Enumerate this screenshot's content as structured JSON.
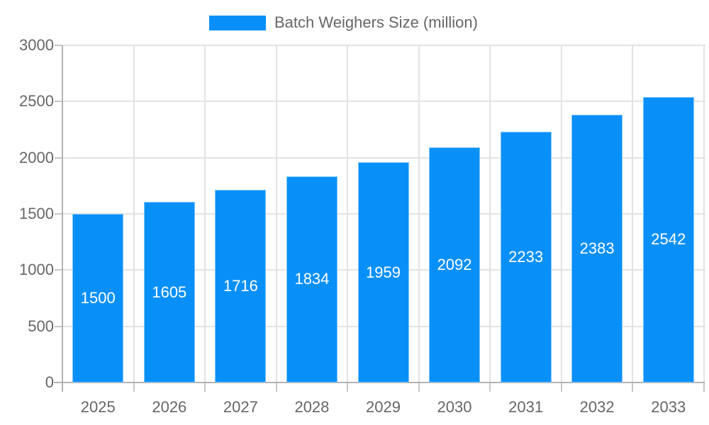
{
  "chart_data": {
    "type": "bar",
    "title": "Batch Weighers Size (million)",
    "legend": [
      "Batch Weighers Size (million)"
    ],
    "legend_position": "top",
    "categories": [
      "2025",
      "2026",
      "2027",
      "2028",
      "2029",
      "2030",
      "2031",
      "2032",
      "2033"
    ],
    "values": [
      1500,
      1605,
      1716,
      1834,
      1959,
      2092,
      2233,
      2383,
      2542
    ],
    "xlabel": "",
    "ylabel": "",
    "ylim": [
      0,
      3000
    ],
    "y_ticks": [
      0,
      500,
      1000,
      1500,
      2000,
      2500,
      3000
    ],
    "grid": true,
    "value_label_position": "inside-middle",
    "colors": {
      "bar": "#0990f8",
      "bar_edge": "#7fc4fb",
      "value_label": "#ffffff",
      "tick_label": "#666666",
      "legend_text": "#666666",
      "gridline": "#e3e3e3",
      "axis": "#b3b3b3",
      "background": "#ffffff"
    }
  }
}
